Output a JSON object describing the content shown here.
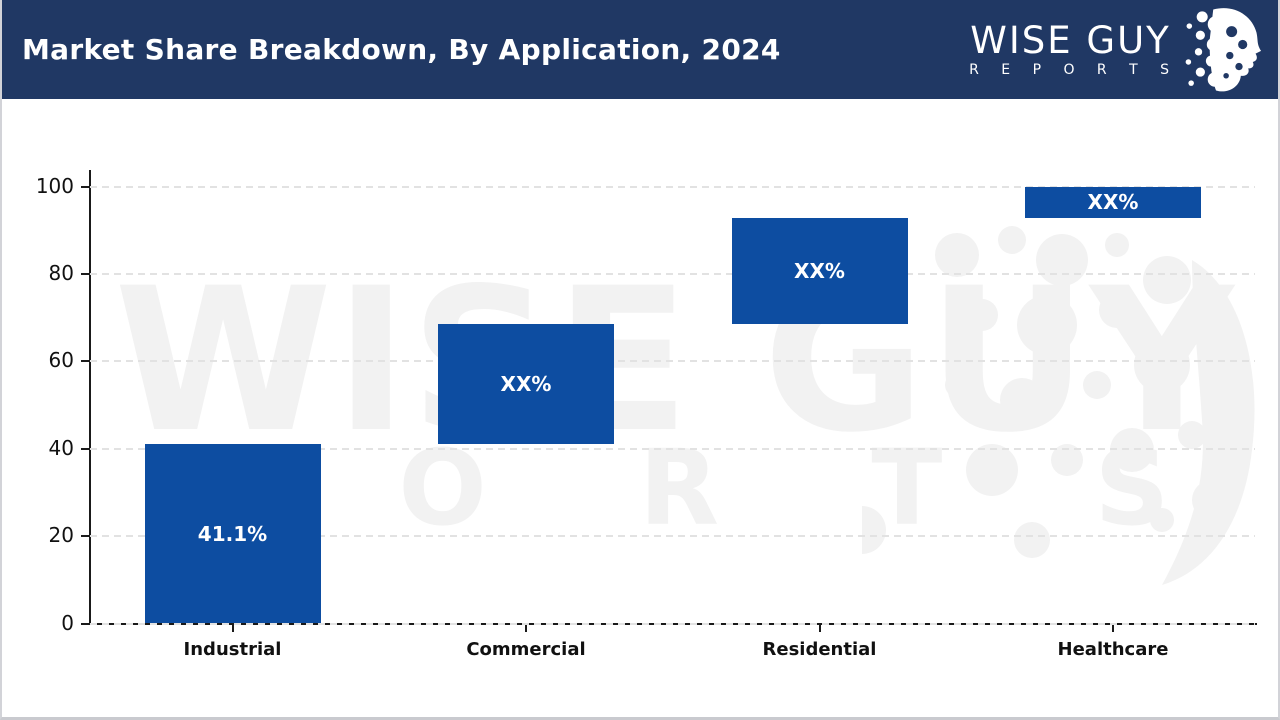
{
  "header": {
    "title": "Market Share Breakdown, By Application, 2024",
    "logo": {
      "line1": "WISE GUY",
      "line2": "R E P O R T S"
    }
  },
  "watermark": {
    "line1": "WISE GUY",
    "line2": "P O R T S"
  },
  "chart_data": {
    "type": "bar",
    "subtype": "waterfall",
    "title": "Market Share Breakdown, By Application, 2024",
    "categories": [
      "Industrial",
      "Commercial",
      "Residential",
      "Healthcare"
    ],
    "segments": [
      {
        "category": "Industrial",
        "start": 0,
        "end": 41.1,
        "label": "41.1%"
      },
      {
        "category": "Commercial",
        "start": 41.1,
        "end": 68.5,
        "label": "XX%"
      },
      {
        "category": "Residential",
        "start": 68.5,
        "end": 92.7,
        "label": "XX%"
      },
      {
        "category": "Healthcare",
        "start": 92.7,
        "end": 100,
        "label": "XX%"
      }
    ],
    "ylim": [
      0,
      100
    ],
    "yticks": [
      0,
      20,
      40,
      60,
      80,
      100
    ],
    "grid": true,
    "legend": false,
    "bar_color": "#0d4da1",
    "label_color": "#ffffff",
    "axis_color": "#1a1a1a",
    "grid_color": "#e2e2e2",
    "header_color": "#203864"
  }
}
